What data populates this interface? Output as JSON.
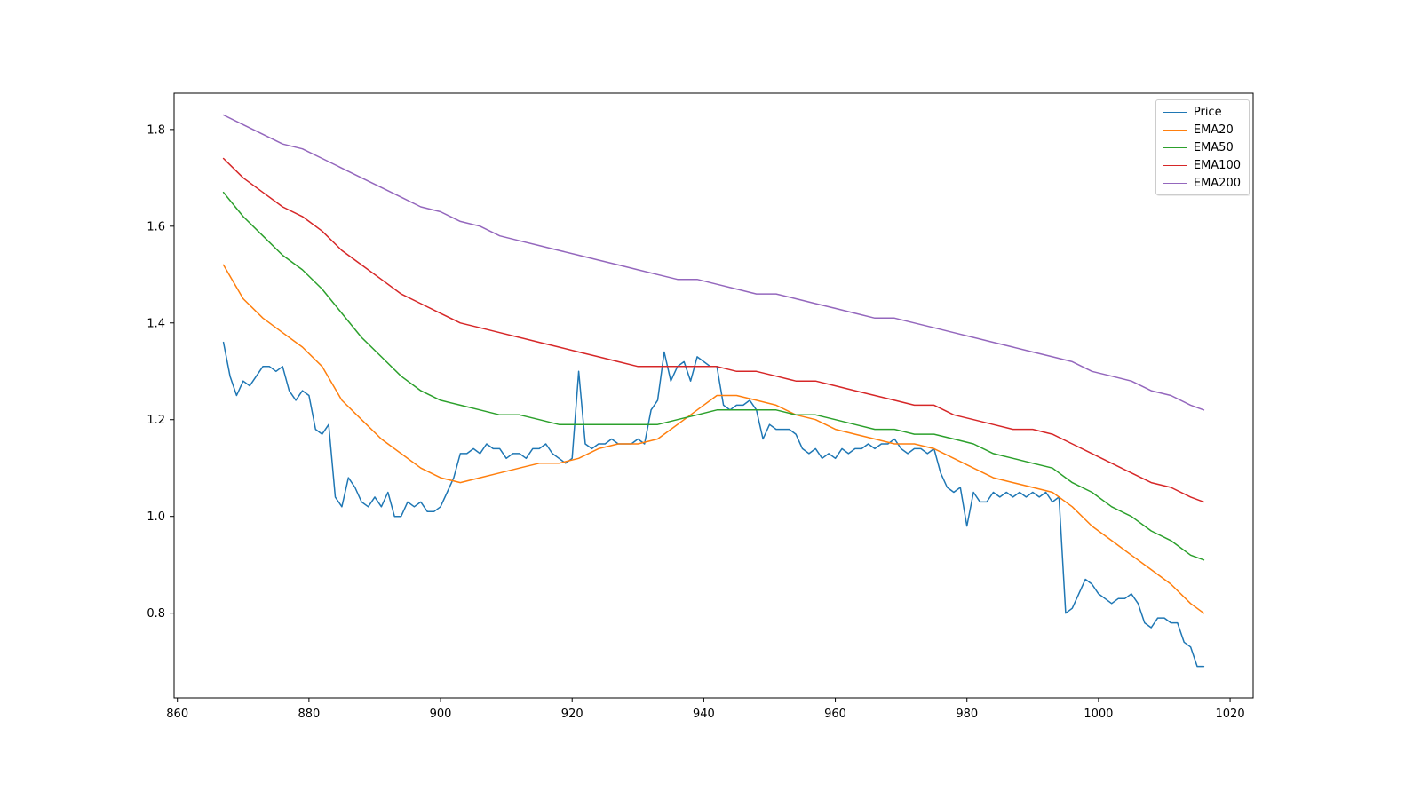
{
  "figure": {
    "background_color": "#ffffff"
  },
  "chart_data": {
    "type": "line",
    "title": "",
    "xlabel": "",
    "ylabel": "",
    "grid": false,
    "legend_position": "upper right",
    "xlim": [
      859.5,
      1023.5
    ],
    "ylim": [
      0.625,
      1.875
    ],
    "x_ticks": [
      860,
      880,
      900,
      920,
      940,
      960,
      980,
      1000,
      1020
    ],
    "x_tick_labels": [
      "860",
      "880",
      "900",
      "920",
      "940",
      "960",
      "980",
      "1000",
      "1020"
    ],
    "y_ticks": [
      0.8,
      1.0,
      1.2,
      1.4,
      1.6,
      1.8
    ],
    "y_tick_labels": [
      "0.8",
      "1.0",
      "1.2",
      "1.4",
      "1.6",
      "1.8"
    ],
    "axis_color": "#000000",
    "ema_x": [
      867,
      870,
      873,
      876,
      879,
      882,
      885,
      888,
      891,
      894,
      897,
      900,
      903,
      906,
      909,
      912,
      915,
      918,
      921,
      924,
      927,
      930,
      933,
      936,
      939,
      942,
      945,
      948,
      951,
      954,
      957,
      960,
      963,
      966,
      969,
      972,
      975,
      978,
      981,
      984,
      987,
      990,
      993,
      996,
      999,
      1002,
      1005,
      1008,
      1011,
      1014,
      1016
    ],
    "series": [
      {
        "name": "Price",
        "color": "#1f77b4",
        "x_start": 867,
        "x_step": 1,
        "y": [
          1.36,
          1.29,
          1.25,
          1.28,
          1.27,
          1.29,
          1.31,
          1.31,
          1.3,
          1.31,
          1.26,
          1.24,
          1.26,
          1.25,
          1.18,
          1.17,
          1.19,
          1.04,
          1.02,
          1.08,
          1.06,
          1.03,
          1.02,
          1.04,
          1.02,
          1.05,
          1.0,
          1.0,
          1.03,
          1.02,
          1.03,
          1.01,
          1.01,
          1.02,
          1.05,
          1.08,
          1.13,
          1.13,
          1.14,
          1.13,
          1.15,
          1.14,
          1.14,
          1.12,
          1.13,
          1.13,
          1.12,
          1.14,
          1.14,
          1.15,
          1.13,
          1.12,
          1.11,
          1.12,
          1.3,
          1.15,
          1.14,
          1.15,
          1.15,
          1.16,
          1.15,
          1.15,
          1.15,
          1.16,
          1.15,
          1.22,
          1.24,
          1.34,
          1.28,
          1.31,
          1.32,
          1.28,
          1.33,
          1.32,
          1.31,
          1.31,
          1.23,
          1.22,
          1.23,
          1.23,
          1.24,
          1.22,
          1.16,
          1.19,
          1.18,
          1.18,
          1.18,
          1.17,
          1.14,
          1.13,
          1.14,
          1.12,
          1.13,
          1.12,
          1.14,
          1.13,
          1.14,
          1.14,
          1.15,
          1.14,
          1.15,
          1.15,
          1.16,
          1.14,
          1.13,
          1.14,
          1.14,
          1.13,
          1.14,
          1.09,
          1.06,
          1.05,
          1.06,
          0.98,
          1.05,
          1.03,
          1.03,
          1.05,
          1.04,
          1.05,
          1.04,
          1.05,
          1.04,
          1.05,
          1.04,
          1.05,
          1.03,
          1.04,
          0.8,
          0.81,
          0.84,
          0.87,
          0.86,
          0.84,
          0.83,
          0.82,
          0.83,
          0.83,
          0.84,
          0.82,
          0.78,
          0.77,
          0.79,
          0.79,
          0.78,
          0.78,
          0.74,
          0.73,
          0.69,
          0.69
        ]
      },
      {
        "name": "EMA20",
        "color": "#ff7f0e",
        "x_key": "ema_x",
        "y": [
          1.52,
          1.45,
          1.41,
          1.38,
          1.35,
          1.31,
          1.24,
          1.2,
          1.16,
          1.13,
          1.1,
          1.08,
          1.07,
          1.08,
          1.09,
          1.1,
          1.11,
          1.11,
          1.12,
          1.14,
          1.15,
          1.15,
          1.16,
          1.19,
          1.22,
          1.25,
          1.25,
          1.24,
          1.23,
          1.21,
          1.2,
          1.18,
          1.17,
          1.16,
          1.15,
          1.15,
          1.14,
          1.12,
          1.1,
          1.08,
          1.07,
          1.06,
          1.05,
          1.02,
          0.98,
          0.95,
          0.92,
          0.89,
          0.86,
          0.82,
          0.8
        ]
      },
      {
        "name": "EMA50",
        "color": "#2ca02c",
        "x_key": "ema_x",
        "y": [
          1.67,
          1.62,
          1.58,
          1.54,
          1.51,
          1.47,
          1.42,
          1.37,
          1.33,
          1.29,
          1.26,
          1.24,
          1.23,
          1.22,
          1.21,
          1.21,
          1.2,
          1.19,
          1.19,
          1.19,
          1.19,
          1.19,
          1.19,
          1.2,
          1.21,
          1.22,
          1.22,
          1.22,
          1.22,
          1.21,
          1.21,
          1.2,
          1.19,
          1.18,
          1.18,
          1.17,
          1.17,
          1.16,
          1.15,
          1.13,
          1.12,
          1.11,
          1.1,
          1.07,
          1.05,
          1.02,
          1.0,
          0.97,
          0.95,
          0.92,
          0.91
        ]
      },
      {
        "name": "EMA100",
        "color": "#d62728",
        "x_key": "ema_x",
        "y": [
          1.74,
          1.7,
          1.67,
          1.64,
          1.62,
          1.59,
          1.55,
          1.52,
          1.49,
          1.46,
          1.44,
          1.42,
          1.4,
          1.39,
          1.38,
          1.37,
          1.36,
          1.35,
          1.34,
          1.33,
          1.32,
          1.31,
          1.31,
          1.31,
          1.31,
          1.31,
          1.3,
          1.3,
          1.29,
          1.28,
          1.28,
          1.27,
          1.26,
          1.25,
          1.24,
          1.23,
          1.23,
          1.21,
          1.2,
          1.19,
          1.18,
          1.18,
          1.17,
          1.15,
          1.13,
          1.11,
          1.09,
          1.07,
          1.06,
          1.04,
          1.03
        ]
      },
      {
        "name": "EMA200",
        "color": "#9467bd",
        "x_key": "ema_x",
        "y": [
          1.83,
          1.81,
          1.79,
          1.77,
          1.76,
          1.74,
          1.72,
          1.7,
          1.68,
          1.66,
          1.64,
          1.63,
          1.61,
          1.6,
          1.58,
          1.57,
          1.56,
          1.55,
          1.54,
          1.53,
          1.52,
          1.51,
          1.5,
          1.49,
          1.49,
          1.48,
          1.47,
          1.46,
          1.46,
          1.45,
          1.44,
          1.43,
          1.42,
          1.41,
          1.41,
          1.4,
          1.39,
          1.38,
          1.37,
          1.36,
          1.35,
          1.34,
          1.33,
          1.32,
          1.3,
          1.29,
          1.28,
          1.26,
          1.25,
          1.23,
          1.22
        ]
      }
    ]
  }
}
